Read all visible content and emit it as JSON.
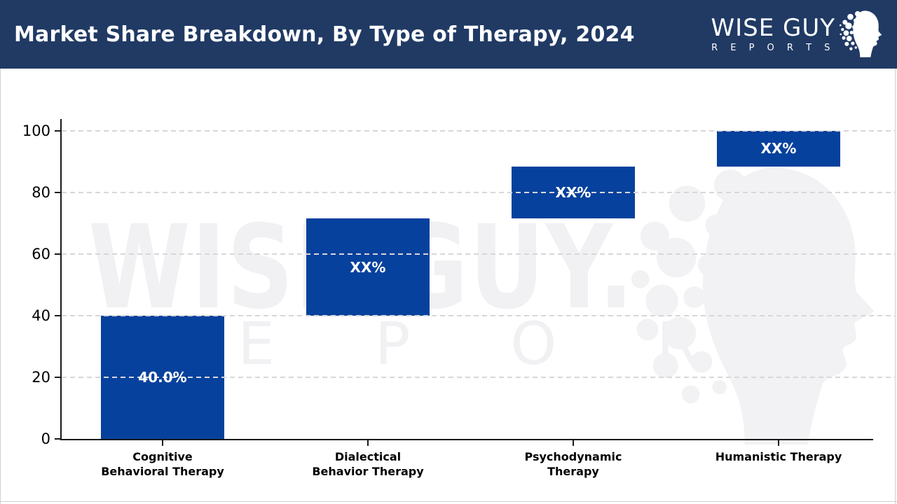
{
  "header": {
    "title": "Market Share Breakdown, By Type of Therapy, 2024",
    "bg_color": "#203a64",
    "logo": {
      "wordmark": "WISE GUY",
      "subtext": "R E P O R T S"
    }
  },
  "watermark": {
    "line1": "WISE GUY.",
    "line2": "R E P O R T S"
  },
  "chart_data": {
    "type": "bar",
    "subtype": "waterfall",
    "title": "Market Share Breakdown, By Type of Therapy, 2024",
    "categories": [
      [
        "Cognitive",
        "Behavioral Therapy"
      ],
      [
        "Dialectical",
        "Behavior Therapy"
      ],
      [
        "Psychodynamic",
        "Therapy"
      ],
      [
        "Humanistic Therapy"
      ]
    ],
    "bars": [
      {
        "category": "Cognitive Behavioral Therapy",
        "label": "40.0%",
        "start": 0,
        "end": 40
      },
      {
        "category": "Dialectical Behavior Therapy",
        "label": "XX%",
        "start": 40,
        "end": 71.5
      },
      {
        "category": "Psychodynamic Therapy",
        "label": "XX%",
        "start": 71.5,
        "end": 88.5
      },
      {
        "category": "Humanistic Therapy",
        "label": "XX%",
        "start": 88.5,
        "end": 100
      }
    ],
    "y_ticks": [
      0,
      20,
      40,
      60,
      80,
      100
    ],
    "ylim": [
      0,
      104
    ],
    "xlabel": "",
    "ylabel": "",
    "grid": "horizontal-dashed",
    "legend": "none",
    "bar_color": "#06419d",
    "bar_label_color": "#ffffff",
    "axis_color": "#1a1a1a",
    "grid_color": "#d7d7da"
  }
}
